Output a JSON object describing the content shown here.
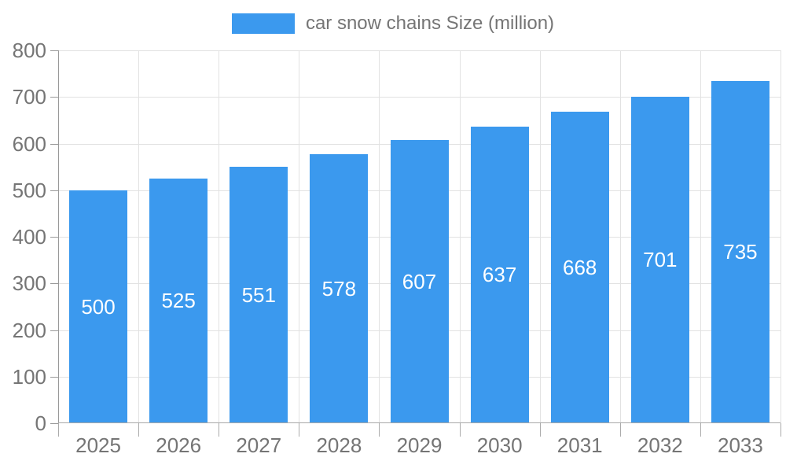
{
  "legend": {
    "label": "car snow chains Size (million)"
  },
  "chart_data": {
    "type": "bar",
    "title": "car snow chains Size (million)",
    "categories": [
      "2025",
      "2026",
      "2027",
      "2028",
      "2029",
      "2030",
      "2031",
      "2032",
      "2033"
    ],
    "series": [
      {
        "name": "car snow chains Size (million)",
        "values": [
          500,
          525,
          551,
          578,
          607,
          637,
          668,
          701,
          735
        ]
      }
    ],
    "xlabel": "",
    "ylabel": "",
    "ylim": [
      0,
      800
    ],
    "yticks": [
      0,
      100,
      200,
      300,
      400,
      500,
      600,
      700,
      800
    ],
    "grid": true,
    "legend_position": "top",
    "colors": {
      "bar": "#3B99EE",
      "value_label": "#FFFFFF",
      "axis_text": "#757575",
      "gridline": "#E2E2E2",
      "axis_line": "#999999"
    }
  }
}
